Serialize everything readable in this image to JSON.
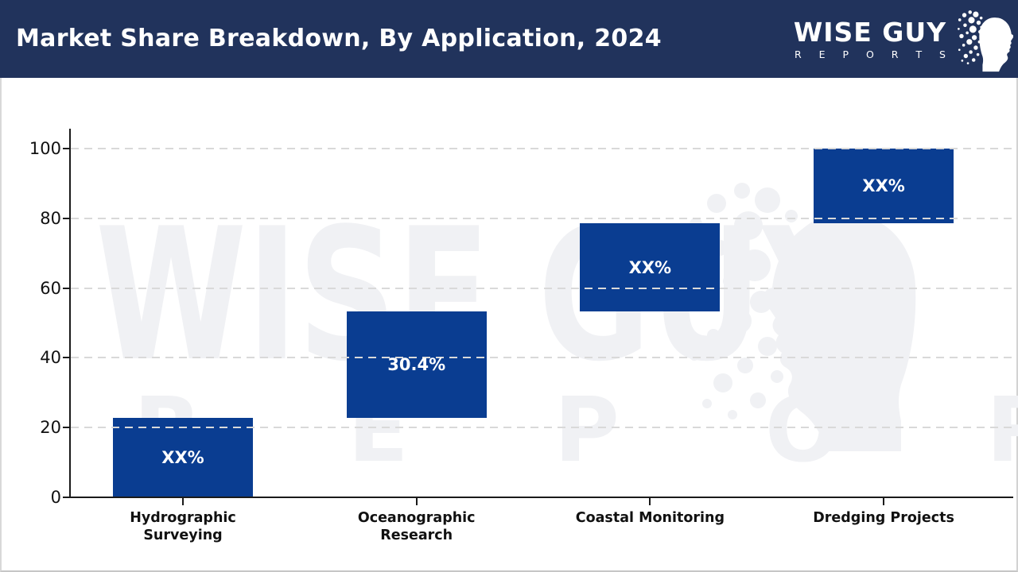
{
  "header": {
    "title": "Market Share Breakdown, By Application, 2024",
    "logo": {
      "wordmark": "WISE GUY",
      "subtext": "R E P O R T S"
    }
  },
  "watermark": {
    "wordmark": "WISE GUY",
    "subtext": "R E P O R T S"
  },
  "chart_data": {
    "type": "bar",
    "subtype": "waterfall",
    "title": "Market Share Breakdown, By Application, 2024",
    "categories": [
      "Hydrographic Surveying",
      "Oceanographic Research",
      "Coastal Monitoring",
      "Dredging Projects"
    ],
    "category_lines": [
      [
        "Hydrographic",
        "Surveying"
      ],
      [
        "Oceanographic",
        "Research"
      ],
      [
        "Coastal Monitoring"
      ],
      [
        "Dredging Projects"
      ]
    ],
    "bars": [
      {
        "category": "Hydrographic Surveying",
        "label": "XX%",
        "start": 0,
        "end": 22.8
      },
      {
        "category": "Oceanographic Research",
        "label": "30.4%",
        "start": 22.8,
        "end": 53.2
      },
      {
        "category": "Coastal Monitoring",
        "label": "XX%",
        "start": 53.2,
        "end": 78.6
      },
      {
        "category": "Dredging Projects",
        "label": "XX%",
        "start": 78.6,
        "end": 100
      }
    ],
    "xlabel": "",
    "ylabel": "",
    "yticks": [
      0,
      20,
      40,
      60,
      80,
      100
    ],
    "ylim": [
      0,
      105
    ],
    "grid": "horizontal-dashed",
    "legend": "none",
    "colors": {
      "bar": "#0a3d91",
      "header_bg": "#21335c",
      "gridline": "#d9d9d9",
      "axis": "#1a1a1a",
      "value_label": "#ffffff",
      "watermark": "#f0f1f4"
    }
  }
}
